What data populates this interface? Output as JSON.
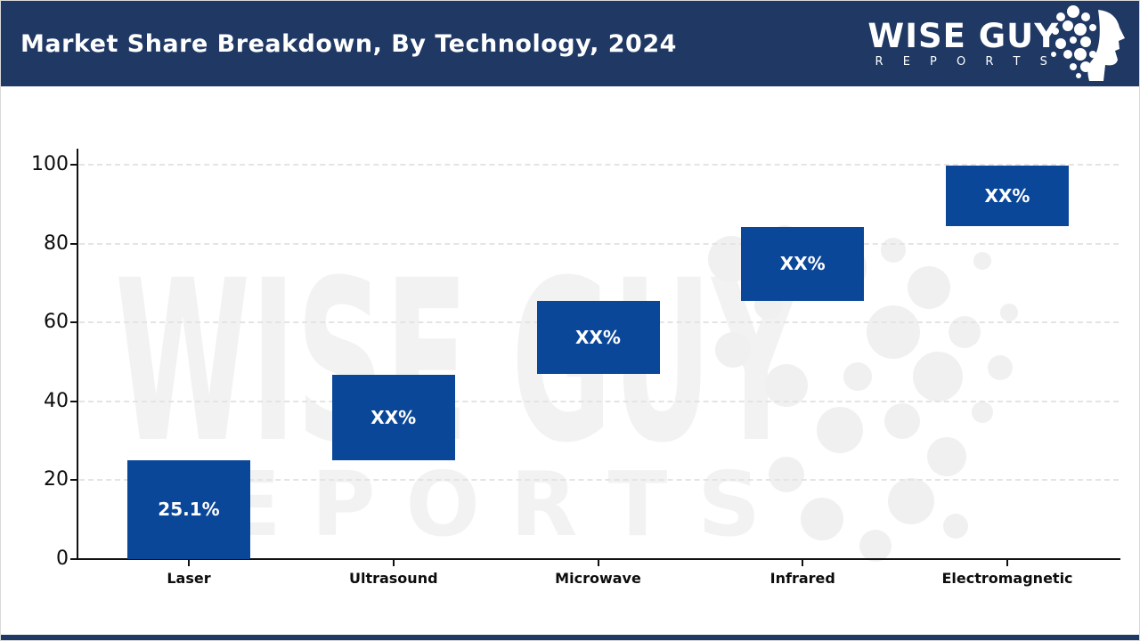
{
  "header": {
    "title": "Market Share Breakdown, By Technology, 2024",
    "logo": {
      "line1": "WISE GUY",
      "line2": "R E P O R T S"
    }
  },
  "watermark": {
    "line1": "WISE GUY",
    "line2": "R E P O R T S"
  },
  "colors": {
    "header_bg": "#1f3864",
    "footer_bg": "#1f3864",
    "bar": "#0b4799",
    "bar_label": "#ffffff",
    "grid": "#e4e4e4",
    "axis": "#111111",
    "watermark": "#f2f2f2"
  },
  "chart_data": {
    "type": "bar",
    "subtype": "floating-waterfall",
    "title": "Market Share Breakdown, By Technology, 2024",
    "categories": [
      "Laser",
      "Ultrasound",
      "Microwave",
      "Infrared",
      "Electromagnetic"
    ],
    "segments": [
      {
        "category": "Laser",
        "start": 0,
        "end": 25.1,
        "label": "25.1%"
      },
      {
        "category": "Ultrasound",
        "start": 25.1,
        "end": 46.8,
        "label": "XX%"
      },
      {
        "category": "Microwave",
        "start": 47.0,
        "end": 65.5,
        "label": "XX%"
      },
      {
        "category": "Infrared",
        "start": 65.6,
        "end": 84.2,
        "label": "XX%"
      },
      {
        "category": "Electromagnetic",
        "start": 84.5,
        "end": 99.9,
        "label": "XX%"
      }
    ],
    "xlabel": "",
    "ylabel": "",
    "yticks": [
      0,
      20,
      40,
      60,
      80,
      100
    ],
    "ylim": [
      0,
      104
    ],
    "grid": "horizontal-dashed",
    "legend": "none"
  }
}
